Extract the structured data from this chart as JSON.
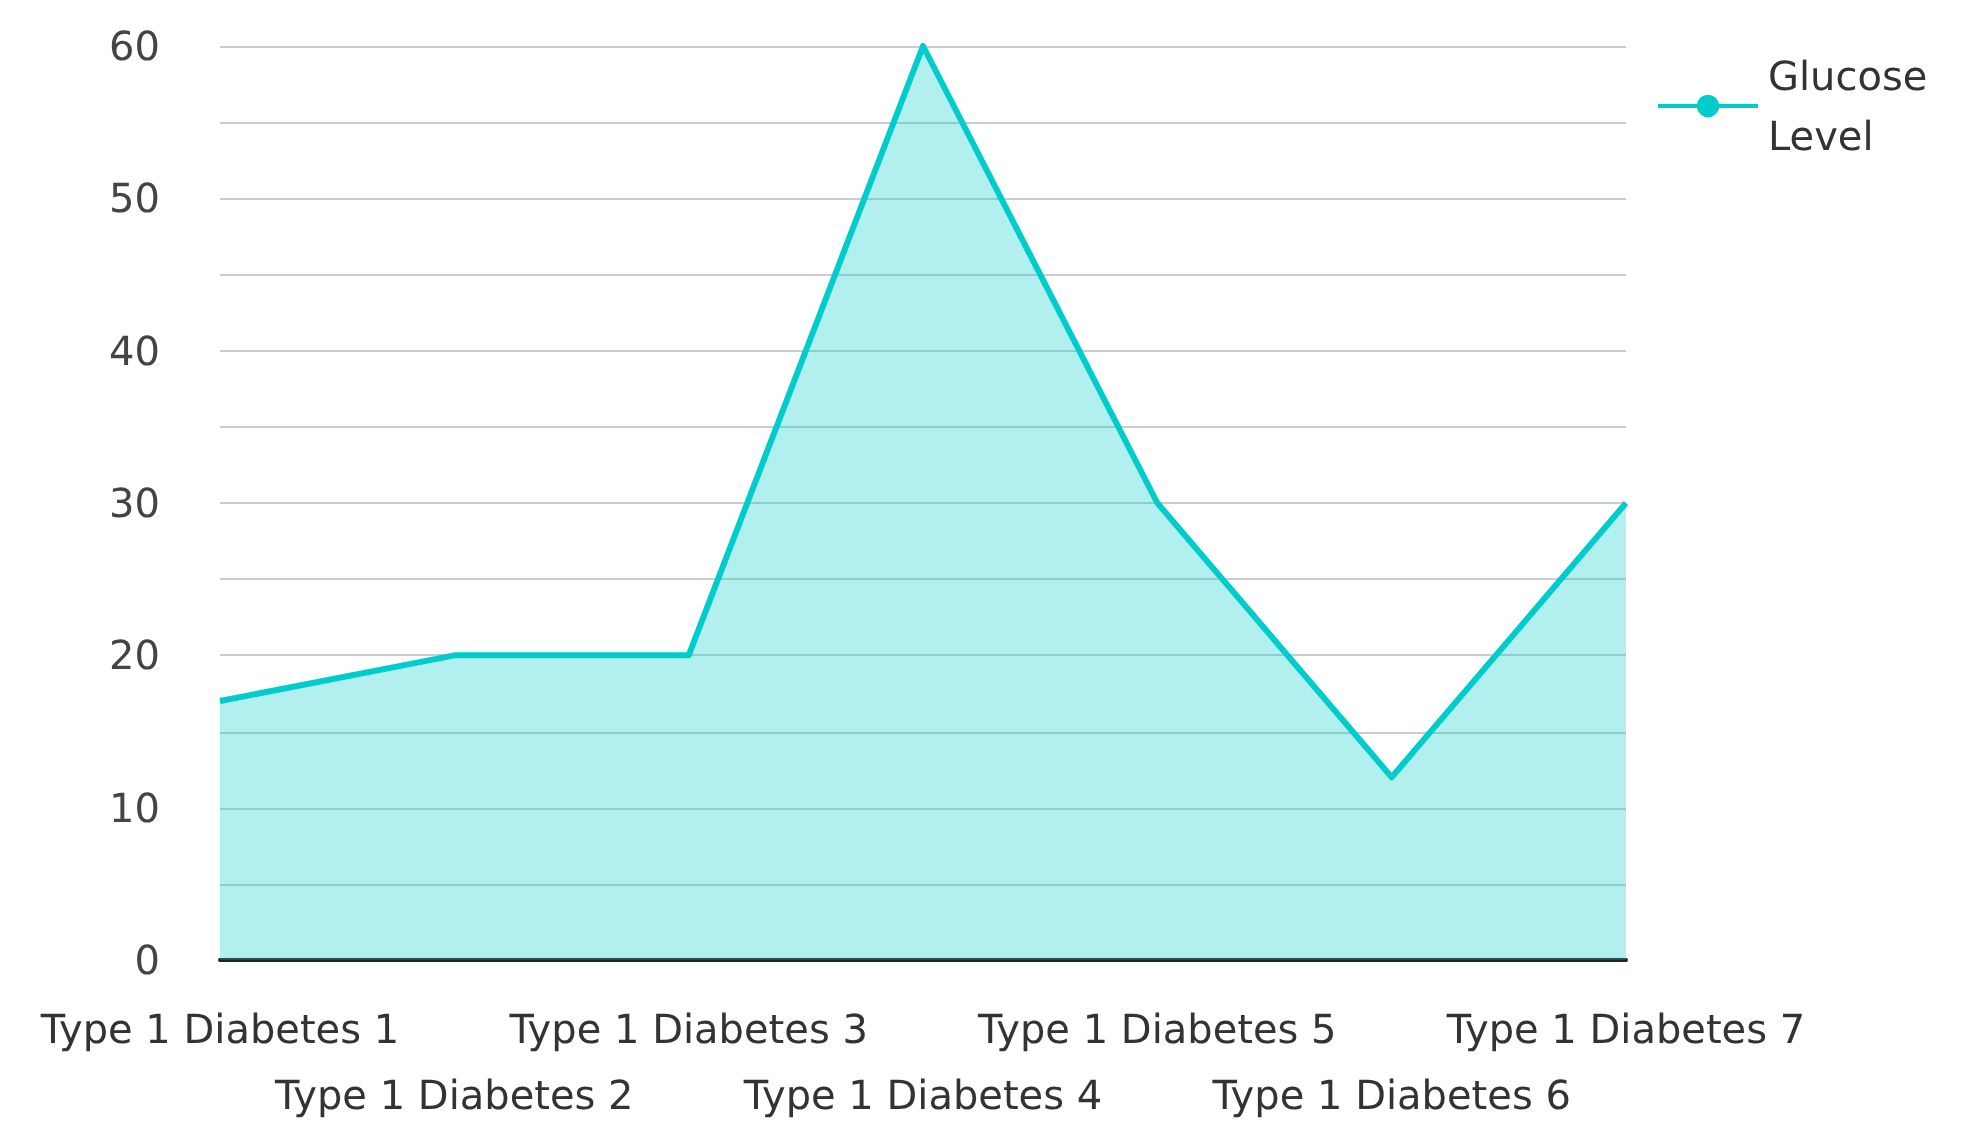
{
  "chart_data": {
    "type": "area",
    "categories": [
      "Type 1 Diabetes 1",
      "Type 1 Diabetes 2",
      "Type 1 Diabetes 3",
      "Type 1 Diabetes 4",
      "Type 1 Diabetes 5",
      "Type 1 Diabetes 6",
      "Type 1 Diabetes 7"
    ],
    "series": [
      {
        "name": "Glucose Level",
        "color": "#00cccc",
        "values": [
          17,
          20,
          20,
          60,
          30,
          12,
          30
        ]
      }
    ],
    "ylim": [
      0,
      60
    ],
    "yticks": [
      0,
      {
        "value": 5,
        "label": null
      },
      10,
      {
        "value": 15,
        "label": null
      },
      20,
      {
        "value": 25,
        "label": null
      },
      30,
      {
        "value": 35,
        "label": null
      },
      40,
      {
        "value": 45,
        "label": null
      },
      50,
      {
        "value": 55,
        "label": null
      },
      60
    ],
    "grid": "y",
    "legend": "top right",
    "marker": "none"
  }
}
